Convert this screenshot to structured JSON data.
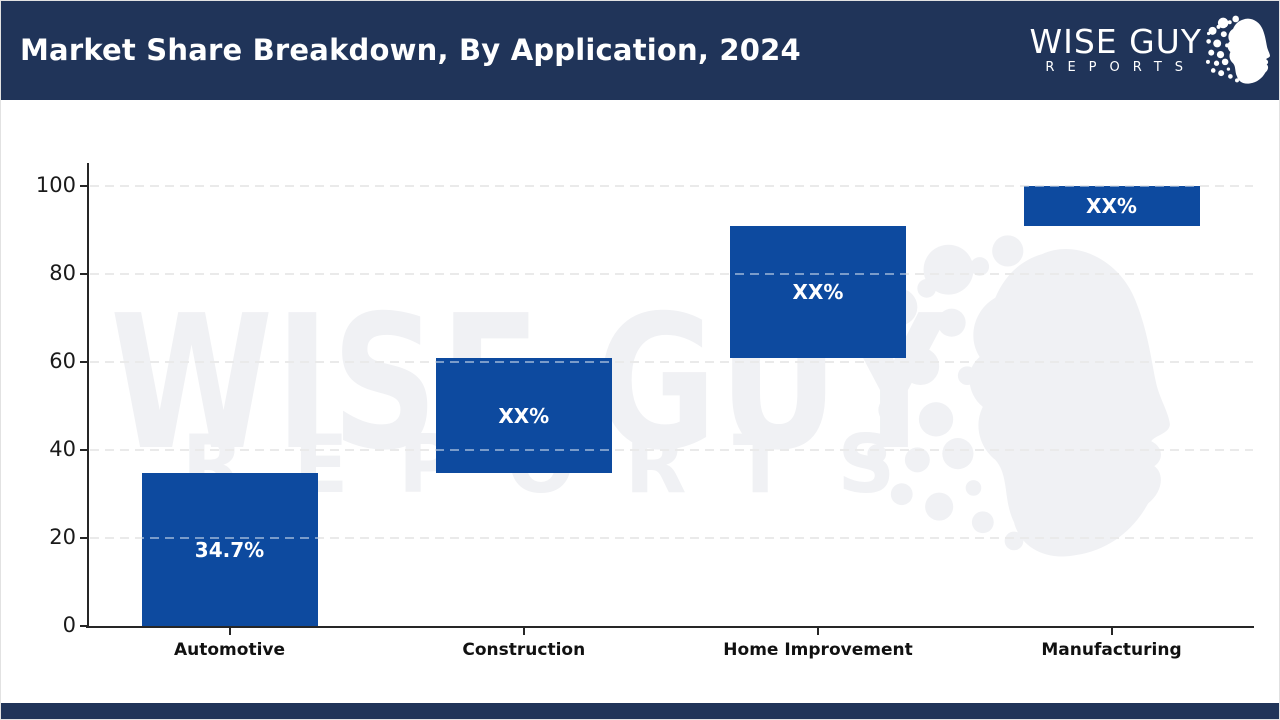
{
  "header": {
    "bg": "#203459",
    "title": "Market Share Breakdown, By Application, 2024",
    "title_color": "#ffffff",
    "logo": {
      "line1": "WISE GUY",
      "line2": "REPORTS"
    }
  },
  "watermark": {
    "line1": "WISE GUY",
    "line2": "REPORTS"
  },
  "footer": {
    "bg": "#203459"
  },
  "chart_data": {
    "type": "bar",
    "subtype": "waterfall",
    "title": "Market Share Breakdown, By Application, 2024",
    "categories": [
      "Automotive",
      "Construction",
      "Home Improvement",
      "Manufacturing"
    ],
    "segments": [
      {
        "category": "Automotive",
        "start": 0,
        "end": 34.7,
        "label": "34.7%"
      },
      {
        "category": "Construction",
        "start": 34.7,
        "end": 61,
        "label": "XX%"
      },
      {
        "category": "Home Improvement",
        "start": 61,
        "end": 91,
        "label": "XX%"
      },
      {
        "category": "Manufacturing",
        "start": 91,
        "end": 100,
        "label": "XX%"
      }
    ],
    "ylim": [
      0,
      100
    ],
    "yticks": [
      0,
      20,
      40,
      60,
      80,
      100
    ],
    "grid": "horizontal-dashed",
    "legend": "none",
    "bar_color": "#0d4a9f",
    "bar_label_color": "#ffffff",
    "grid_color": "#d9d9d9",
    "axis_color": "#262626"
  }
}
